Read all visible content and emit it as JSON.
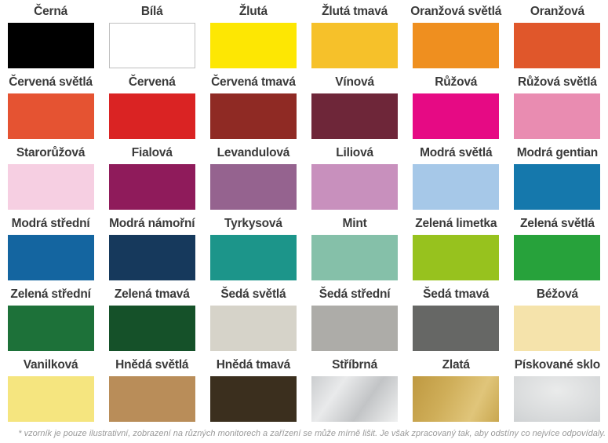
{
  "page": {
    "background": "#ffffff",
    "label_color": "#3a3a3a",
    "footnote": "* vzorník je pouze ilustrativní, zobrazení na různých monitorech a zařízení se může mírně lišit. Je však zpracovaný tak, aby odstíny co nejvíce odpovídaly."
  },
  "palette": {
    "columns": 6,
    "rows": 6,
    "swatches": [
      {
        "name": "Černá",
        "color": "#000000"
      },
      {
        "name": "Bílá",
        "color": "#ffffff",
        "border": "#bfbfbf"
      },
      {
        "name": "Žlutá",
        "color": "#fde703"
      },
      {
        "name": "Žlutá tmavá",
        "color": "#f6c12a"
      },
      {
        "name": "Oranžová světlá",
        "color": "#ef8f1f"
      },
      {
        "name": "Oranžová",
        "color": "#e0572b"
      },
      {
        "name": "Červená světlá",
        "color": "#e55332"
      },
      {
        "name": "Červená",
        "color": "#da2323"
      },
      {
        "name": "Červená tmavá",
        "color": "#8f2a24"
      },
      {
        "name": "Vínová",
        "color": "#6e2639"
      },
      {
        "name": "Růžová",
        "color": "#e60a84"
      },
      {
        "name": "Růžová světlá",
        "color": "#e98cb1"
      },
      {
        "name": "Starorůžová",
        "color": "#f6cfe2"
      },
      {
        "name": "Fialová",
        "color": "#8f1b5b"
      },
      {
        "name": "Levandulová",
        "color": "#95638f"
      },
      {
        "name": "Liliová",
        "color": "#c890bd"
      },
      {
        "name": "Modrá světlá",
        "color": "#a6c8e8"
      },
      {
        "name": "Modrá gentian",
        "color": "#1578ac"
      },
      {
        "name": "Modrá střední",
        "color": "#1465a0"
      },
      {
        "name": "Modrá námořní",
        "color": "#16395c"
      },
      {
        "name": "Tyrkysová",
        "color": "#1c958a"
      },
      {
        "name": "Mint",
        "color": "#85c0a9"
      },
      {
        "name": "Zelená limetka",
        "color": "#97c21e"
      },
      {
        "name": "Zelená světlá",
        "color": "#27a23b"
      },
      {
        "name": "Zelená střední",
        "color": "#1d7139"
      },
      {
        "name": "Zelená tmavá",
        "color": "#155129"
      },
      {
        "name": "Šedá světlá",
        "color": "#d6d3c9"
      },
      {
        "name": "Šedá střední",
        "color": "#adaca8"
      },
      {
        "name": "Šedá tmavá",
        "color": "#666765"
      },
      {
        "name": "Béžová",
        "color": "#f5e3ab"
      },
      {
        "name": "Vanilková",
        "color": "#f5e57f"
      },
      {
        "name": "Hnědá světlá",
        "color": "#b98d59"
      },
      {
        "name": "Hnědá tmavá",
        "color": "#3b2f1e"
      },
      {
        "name": "Stříbrná",
        "gradient": "linear-gradient(125deg, #cbcdcf 0%, #e9eaeb 30%, #c2c4c6 62%, #f0f1f1 100%)"
      },
      {
        "name": "Zlatá",
        "gradient": "linear-gradient(115deg, #bf9941 0%, #cfae59 38%, #e0c57a 72%, #c9a74f 100%)"
      },
      {
        "name": "Pískované sklo",
        "gradient": "radial-gradient(ellipse 90px 55px at 50% 32%, #eaebeb 0%, #d8dadb 65%, #cdd0d2 100%)"
      }
    ]
  }
}
